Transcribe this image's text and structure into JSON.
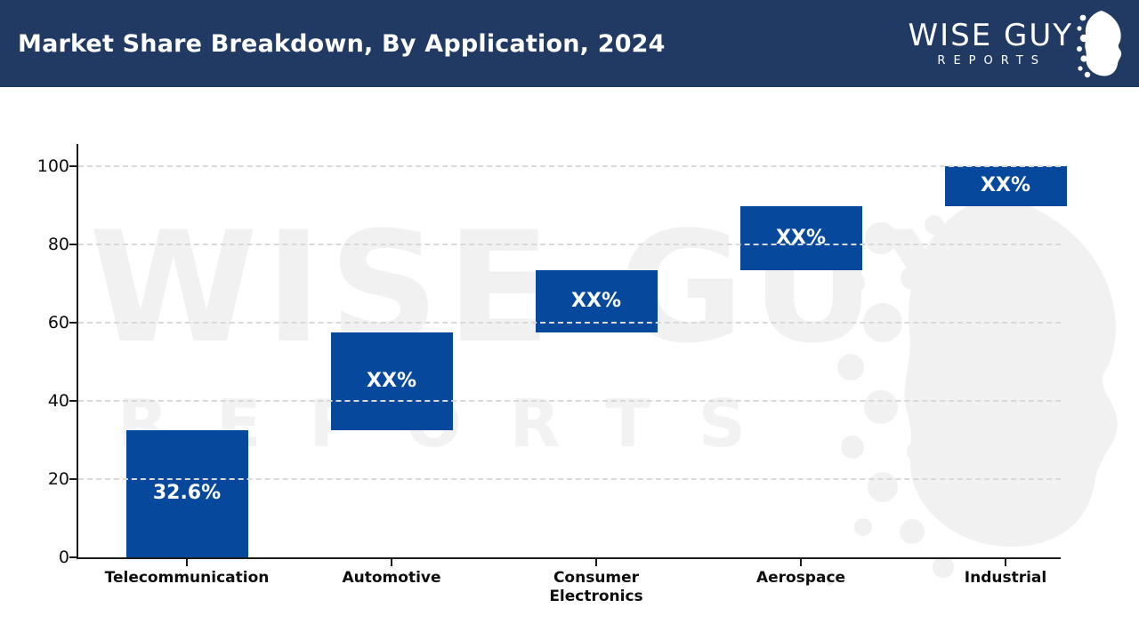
{
  "header": {
    "title": "Market Share Breakdown, By Application, 2024",
    "logo": {
      "wordmark": "WISE GUY",
      "subtext": "REPORTS"
    }
  },
  "watermark": {
    "line1": "WISE GUY",
    "line2": "REPORTS"
  },
  "colors": {
    "header_background": "#213a63",
    "bar_fill": "#05489c",
    "gridline": "#d9d9d9",
    "axis": "#1c1c1c",
    "value_label_text": "#ffffff",
    "watermark": "#f1f1f1"
  },
  "chart_data": {
    "type": "bar",
    "subtype": "waterfall",
    "title": "Market Share Breakdown, By Application, 2024",
    "xlabel": "",
    "ylabel": "",
    "ylim": [
      0,
      105
    ],
    "yticks": [
      0,
      20,
      40,
      60,
      80,
      100
    ],
    "grid": "horizontal-dashed, drawn above bars",
    "legend": "none",
    "categories": [
      "Telecommunication",
      "Automotive",
      "Consumer\nElectronics",
      "Aerospace",
      "Industrial"
    ],
    "segments": [
      {
        "category": "Telecommunication",
        "start": 0,
        "end": 32.6,
        "value": 32.6,
        "label": "32.6%"
      },
      {
        "category": "Automotive",
        "start": 32.6,
        "end": 57.5,
        "value": 24.9,
        "label": "XX%"
      },
      {
        "category": "Consumer\nElectronics",
        "start": 57.5,
        "end": 73.4,
        "value": 15.9,
        "label": "XX%"
      },
      {
        "category": "Aerospace",
        "start": 73.4,
        "end": 89.8,
        "value": 16.4,
        "label": "XX%"
      },
      {
        "category": "Industrial",
        "start": 89.8,
        "end": 100,
        "value": 10.2,
        "label": "XX%"
      }
    ]
  }
}
